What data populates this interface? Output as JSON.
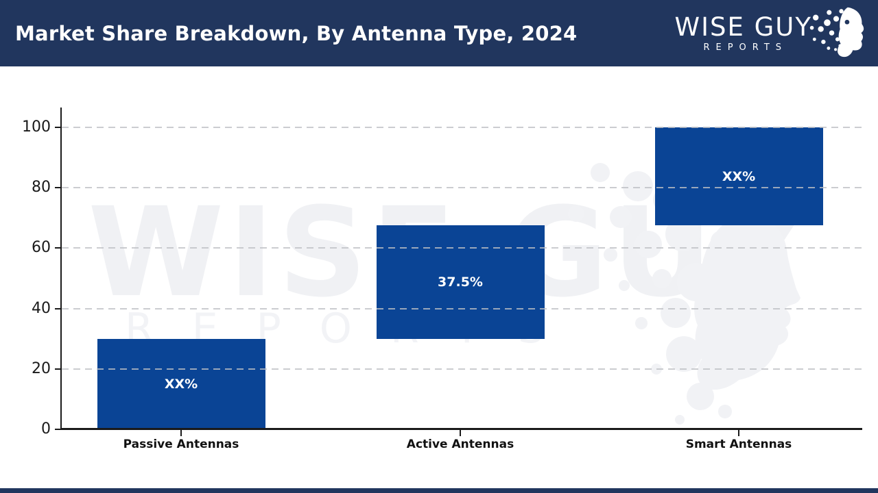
{
  "header": {
    "title": "Market Share Breakdown, By Antenna Type, 2024",
    "logo": {
      "line1": "WISE GUY",
      "line2": "REPORTS",
      "icon": "dotted-face-profile"
    },
    "bg_color": "#21365e"
  },
  "watermark": {
    "line1": "WISE GUY",
    "line2": "REPORTS",
    "icon": "dotted-face-profile"
  },
  "footer": {
    "bg_color": "#21365e"
  },
  "chart_data": {
    "type": "bar",
    "subtype": "floating-waterfall",
    "title": "Market Share Breakdown, By Antenna Type, 2024",
    "categories": [
      "Passive Antennas",
      "Active Antennas",
      "Smart Antennas"
    ],
    "series": [
      {
        "name": "Market Share",
        "bars": [
          {
            "category": "Passive Antennas",
            "start": 0,
            "end": 30,
            "label": "XX%"
          },
          {
            "category": "Active Antennas",
            "start": 30,
            "end": 67.5,
            "label": "37.5%"
          },
          {
            "category": "Smart Antennas",
            "start": 67.5,
            "end": 100,
            "label": "XX%"
          }
        ]
      }
    ],
    "ylim": [
      0,
      100
    ],
    "yticks": [
      0,
      20,
      40,
      60,
      80,
      100
    ],
    "xlabel": "",
    "ylabel": "",
    "grid": "horizontal-dashed",
    "legend": "none",
    "bar_color": "#0a4495",
    "bar_label_color": "#ffffff",
    "axis_color": "#1a1a1a"
  }
}
